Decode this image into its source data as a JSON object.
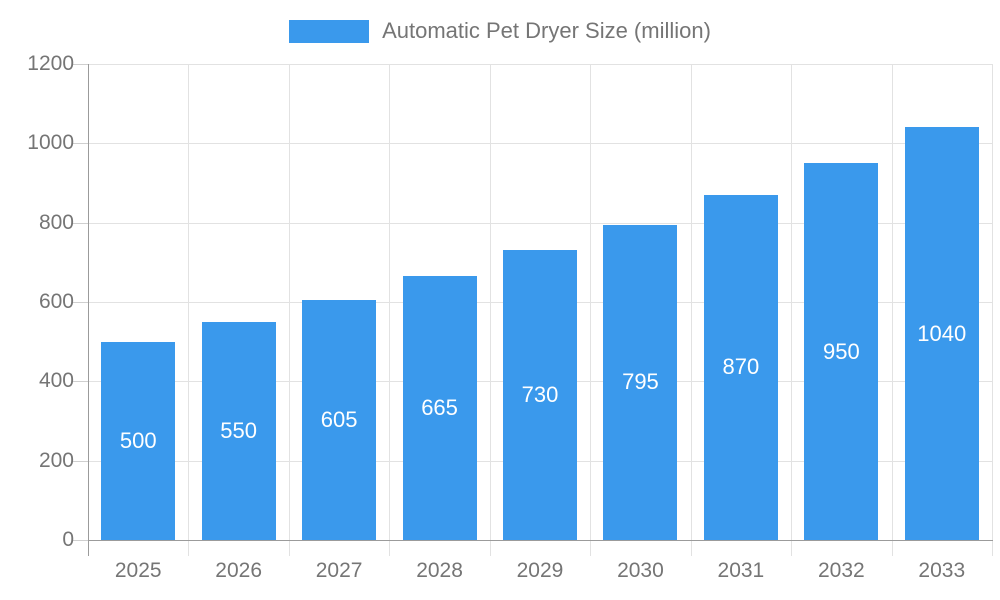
{
  "legend": {
    "label": "Automatic Pet Dryer Size (million)"
  },
  "chart_data": {
    "type": "bar",
    "title": "Automatic Pet Dryer Size (million)",
    "categories": [
      "2025",
      "2026",
      "2027",
      "2028",
      "2029",
      "2030",
      "2031",
      "2032",
      "2033"
    ],
    "values": [
      500,
      550,
      605,
      665,
      730,
      795,
      870,
      950,
      1040
    ],
    "series": [
      {
        "name": "Automatic Pet Dryer Size (million)",
        "values": [
          500,
          550,
          605,
          665,
          730,
          795,
          870,
          950,
          1040
        ]
      }
    ],
    "xlabel": "",
    "ylabel": "",
    "ylim": [
      0,
      1200
    ],
    "yticks": [
      0,
      200,
      400,
      600,
      800,
      1000,
      1200
    ],
    "grid": true,
    "legend_position": "top-center",
    "value_labels": "inside-center",
    "colors": {
      "bar": "#3A99EC",
      "gridline": "#e2e2e2",
      "axis_line": "#9b9b9b",
      "axis_text": "#757575",
      "value_label_text": "#ffffff",
      "background": "#ffffff"
    }
  }
}
